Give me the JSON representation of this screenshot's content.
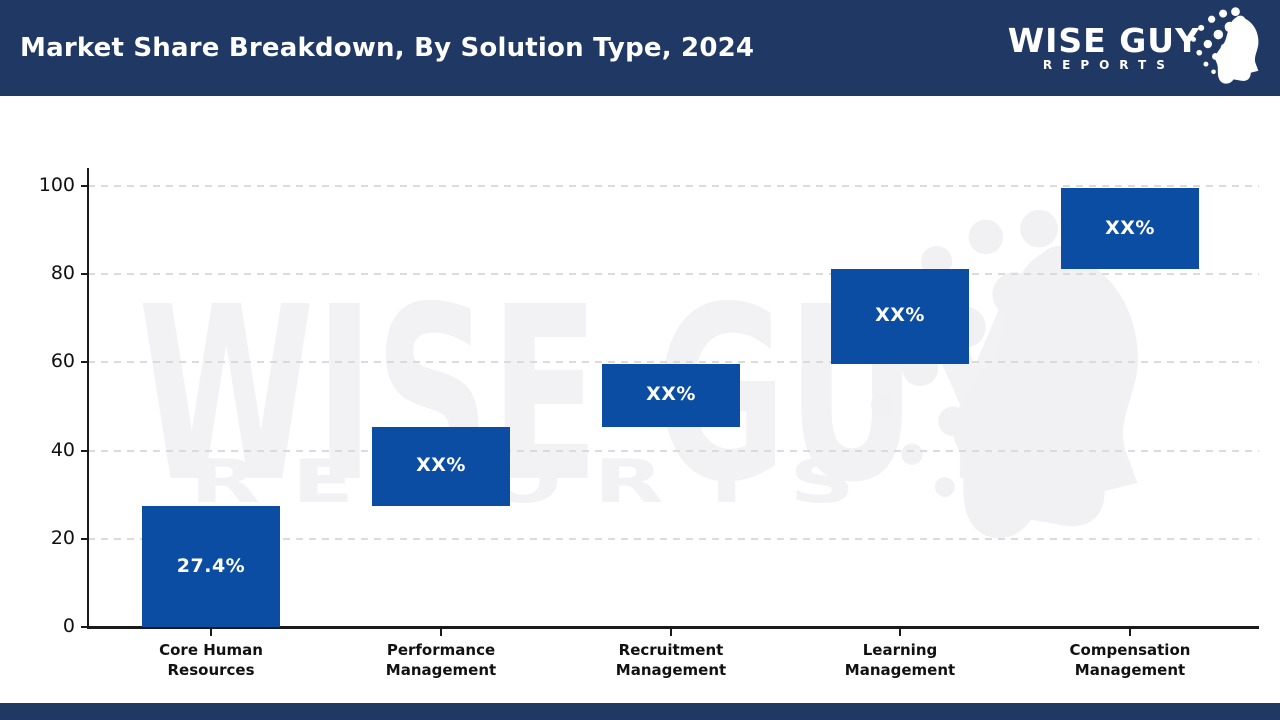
{
  "header": {
    "title": "Market Share Breakdown, By Solution Type, 2024",
    "logo": {
      "line1": "WISE GUY",
      "line2": "REPORTS"
    }
  },
  "watermark": {
    "line1": "WISE GUY",
    "line2": "R E P O R T S"
  },
  "colors": {
    "header_navy": "#203864",
    "bar_blue": "#0B4DA2",
    "gridline_gray": "#DBDBDB",
    "axis_black": "#1A1A1A",
    "watermark_gray": "#F2F2F4",
    "label_white": "#FFFFFF"
  },
  "chart_data": {
    "type": "bar",
    "subtype": "waterfall",
    "title": "Market Share Breakdown, By Solution Type, 2024",
    "xlabel": "",
    "ylabel": "",
    "ylim": [
      0,
      100
    ],
    "yticks": [
      0,
      20,
      40,
      60,
      80,
      100
    ],
    "grid": "horizontal dashed",
    "legend": "none",
    "categories": [
      "Core Human\nResources",
      "Performance\nManagement",
      "Recruitment\nManagement",
      "Learning\nManagement",
      "Compensation\nManagement"
    ],
    "segments": [
      {
        "category": "Core Human\nResources",
        "start": 0,
        "end": 27.4,
        "label": "27.4%"
      },
      {
        "category": "Performance\nManagement",
        "start": 27.4,
        "end": 45.4,
        "label": "XX%"
      },
      {
        "category": "Recruitment\nManagement",
        "start": 45.4,
        "end": 59.7,
        "label": "XX%"
      },
      {
        "category": "Learning\nManagement",
        "start": 59.7,
        "end": 81.2,
        "label": "XX%"
      },
      {
        "category": "Compensation\nManagement",
        "start": 81.2,
        "end": 99.5,
        "label": "XX%"
      }
    ]
  }
}
